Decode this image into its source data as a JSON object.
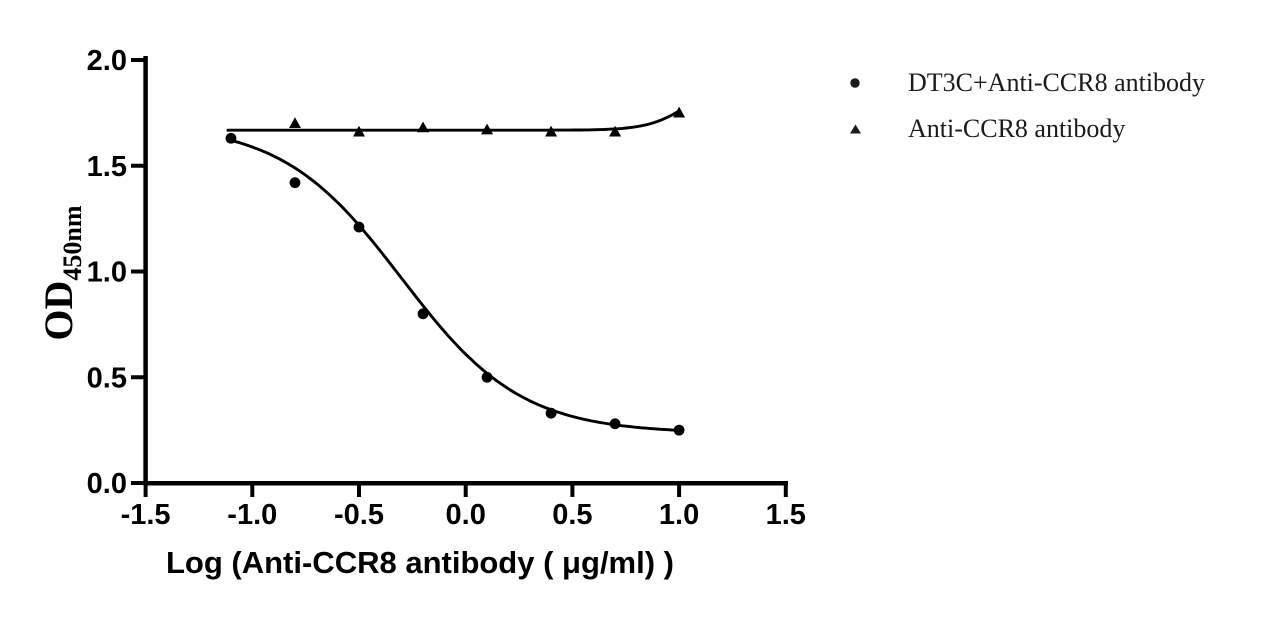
{
  "figure": {
    "background_color": "#ffffff",
    "ink_color": "#000000"
  },
  "chart_data": {
    "type": "scatter",
    "title": "",
    "xlabel": "Log (Anti-CCR8 antibody ( μg/ml) )",
    "ylabel_main": "OD",
    "ylabel_sub": "450nm",
    "xlim": [
      -1.5,
      1.5
    ],
    "ylim": [
      0.0,
      2.0
    ],
    "grid": false,
    "legend_position": "upper-right-outside",
    "x_ticks": {
      "values": [
        -1.5,
        -1.0,
        -0.5,
        0.0,
        0.5,
        1.0,
        1.5
      ],
      "labels": [
        "-1.5",
        "-1.0",
        "-0.5",
        "0.0",
        "0.5",
        "1.0",
        "1.5"
      ]
    },
    "y_ticks": {
      "values": [
        2.0,
        1.5,
        1.0,
        0.5,
        0.0
      ],
      "labels": [
        "2.0",
        "1.5",
        "1.0",
        "0.5",
        "0.0"
      ]
    },
    "series": [
      {
        "name": "DT3C+Anti-CCR8 antibody",
        "marker": "circle",
        "color": "#000000",
        "x": [
          -1.1,
          -0.8,
          -0.5,
          -0.2,
          0.1,
          0.4,
          0.7,
          1.0
        ],
        "y": [
          1.63,
          1.42,
          1.21,
          0.8,
          0.5,
          0.33,
          0.28,
          0.25
        ],
        "fit_curve_4pl": {
          "top": 1.7,
          "bottom": 0.235,
          "log_ec50": -0.3,
          "hill": 1.55,
          "x_range": [
            -1.12,
            1.02
          ]
        }
      },
      {
        "name": "Anti-CCR8 antibody",
        "marker": "triangle",
        "color": "#000000",
        "x": [
          -0.8,
          -0.5,
          -0.2,
          0.1,
          0.4,
          0.7,
          1.0
        ],
        "y": [
          1.7,
          1.66,
          1.68,
          1.67,
          1.66,
          1.66,
          1.75
        ],
        "fit_curve_4pl": {
          "top": 1.93,
          "bottom": 1.668,
          "log_ec50": 1.06,
          "hill": -4.5,
          "x_range": [
            -1.12,
            1.0
          ]
        }
      }
    ]
  },
  "legend": {
    "items": [
      {
        "marker": "circle",
        "label": "DT3C+Anti-CCR8 antibody"
      },
      {
        "marker": "triangle",
        "label": "Anti-CCR8 antibody"
      }
    ]
  }
}
